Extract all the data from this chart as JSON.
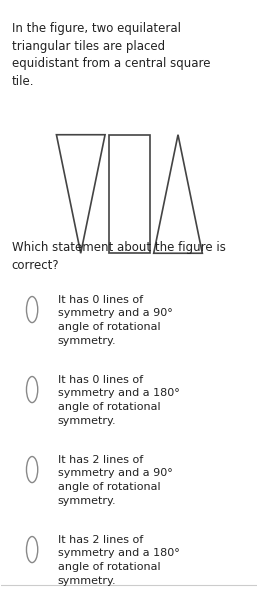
{
  "bg_color": "#ffffff",
  "text_color": "#222222",
  "intro_text": "In the figure, two equilateral\ntriangular tiles are placed\nequidistant from a central square\ntile.",
  "question_text": "Which statement about the figure is\ncorrect?",
  "options": [
    {
      "label": "It has 0 lines of\nsymmetry and a 90°\nangle of rotational\nsymmetry."
    },
    {
      "label": "It has 0 lines of\nsymmetry and a 180°\nangle of rotational\nsymmetry."
    },
    {
      "label": "It has 2 lines of\nsymmetry and a 90°\nangle of rotational\nsymmetry."
    },
    {
      "label": "It has 2 lines of\nsymmetry and a 180°\nangle of rotational\nsymmetry."
    }
  ],
  "fig_width": 2.71,
  "fig_height": 6.0,
  "dpi": 100
}
